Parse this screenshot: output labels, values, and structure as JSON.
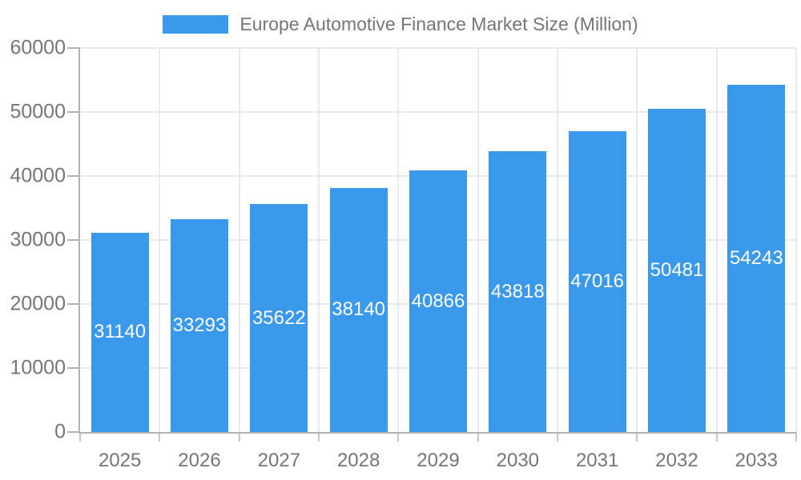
{
  "chart_data": {
    "type": "bar",
    "title": "Europe Automotive Finance Market Size (Million)",
    "categories": [
      "2025",
      "2026",
      "2027",
      "2028",
      "2029",
      "2030",
      "2031",
      "2032",
      "2033"
    ],
    "values": [
      31140,
      33293,
      35622,
      38140,
      40866,
      43818,
      47016,
      50481,
      54243
    ],
    "xlabel": "",
    "ylabel": "",
    "ylim": [
      0,
      60000
    ],
    "yticks": [
      0,
      10000,
      20000,
      30000,
      40000,
      50000,
      60000
    ],
    "grid": true,
    "legend_position": "top",
    "value_labels": "inside-center",
    "colors": {
      "bar": "#3B99EC",
      "grid": "#E9E9E9",
      "axis": "#B3B3B3",
      "tick": "#C6C6C6",
      "text": "#757575",
      "value_label": "#FFFFFF",
      "background": "#FFFFFF"
    }
  }
}
